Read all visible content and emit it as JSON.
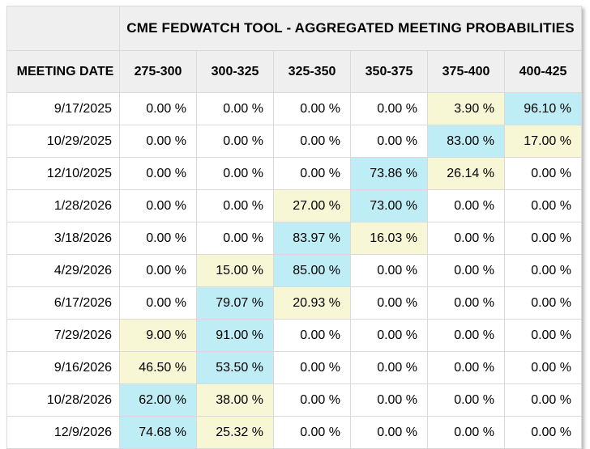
{
  "title": "CME FEDWATCH TOOL - AGGREGATED MEETING PROBABILITIES",
  "table": {
    "date_header": "MEETING DATE",
    "rate_headers": [
      "275-300",
      "300-325",
      "325-350",
      "350-375",
      "375-400",
      "400-425"
    ],
    "rows": [
      {
        "date": "9/17/2025",
        "cells": [
          {
            "value": "0.00 %",
            "highlight": "none"
          },
          {
            "value": "0.00 %",
            "highlight": "none"
          },
          {
            "value": "0.00 %",
            "highlight": "none"
          },
          {
            "value": "0.00 %",
            "highlight": "none"
          },
          {
            "value": "3.90 %",
            "highlight": "yellow"
          },
          {
            "value": "96.10 %",
            "highlight": "blue"
          }
        ]
      },
      {
        "date": "10/29/2025",
        "cells": [
          {
            "value": "0.00 %",
            "highlight": "none"
          },
          {
            "value": "0.00 %",
            "highlight": "none"
          },
          {
            "value": "0.00 %",
            "highlight": "none"
          },
          {
            "value": "0.00 %",
            "highlight": "none"
          },
          {
            "value": "83.00 %",
            "highlight": "blue"
          },
          {
            "value": "17.00 %",
            "highlight": "yellow"
          }
        ]
      },
      {
        "date": "12/10/2025",
        "cells": [
          {
            "value": "0.00 %",
            "highlight": "none"
          },
          {
            "value": "0.00 %",
            "highlight": "none"
          },
          {
            "value": "0.00 %",
            "highlight": "none"
          },
          {
            "value": "73.86 %",
            "highlight": "blue"
          },
          {
            "value": "26.14 %",
            "highlight": "yellow"
          },
          {
            "value": "0.00 %",
            "highlight": "none"
          }
        ]
      },
      {
        "date": "1/28/2026",
        "cells": [
          {
            "value": "0.00 %",
            "highlight": "none"
          },
          {
            "value": "0.00 %",
            "highlight": "none"
          },
          {
            "value": "27.00 %",
            "highlight": "yellow"
          },
          {
            "value": "73.00 %",
            "highlight": "blue"
          },
          {
            "value": "0.00 %",
            "highlight": "none"
          },
          {
            "value": "0.00 %",
            "highlight": "none"
          }
        ]
      },
      {
        "date": "3/18/2026",
        "cells": [
          {
            "value": "0.00 %",
            "highlight": "none"
          },
          {
            "value": "0.00 %",
            "highlight": "none"
          },
          {
            "value": "83.97 %",
            "highlight": "blue"
          },
          {
            "value": "16.03 %",
            "highlight": "yellow"
          },
          {
            "value": "0.00 %",
            "highlight": "none"
          },
          {
            "value": "0.00 %",
            "highlight": "none"
          }
        ]
      },
      {
        "date": "4/29/2026",
        "cells": [
          {
            "value": "0.00 %",
            "highlight": "none"
          },
          {
            "value": "15.00 %",
            "highlight": "yellow"
          },
          {
            "value": "85.00 %",
            "highlight": "blue"
          },
          {
            "value": "0.00 %",
            "highlight": "none"
          },
          {
            "value": "0.00 %",
            "highlight": "none"
          },
          {
            "value": "0.00 %",
            "highlight": "none"
          }
        ]
      },
      {
        "date": "6/17/2026",
        "cells": [
          {
            "value": "0.00 %",
            "highlight": "none"
          },
          {
            "value": "79.07 %",
            "highlight": "blue"
          },
          {
            "value": "20.93 %",
            "highlight": "yellow"
          },
          {
            "value": "0.00 %",
            "highlight": "none"
          },
          {
            "value": "0.00 %",
            "highlight": "none"
          },
          {
            "value": "0.00 %",
            "highlight": "none"
          }
        ]
      },
      {
        "date": "7/29/2026",
        "cells": [
          {
            "value": "9.00 %",
            "highlight": "yellow"
          },
          {
            "value": "91.00 %",
            "highlight": "blue"
          },
          {
            "value": "0.00 %",
            "highlight": "none"
          },
          {
            "value": "0.00 %",
            "highlight": "none"
          },
          {
            "value": "0.00 %",
            "highlight": "none"
          },
          {
            "value": "0.00 %",
            "highlight": "none"
          }
        ]
      },
      {
        "date": "9/16/2026",
        "cells": [
          {
            "value": "46.50 %",
            "highlight": "yellow"
          },
          {
            "value": "53.50 %",
            "highlight": "blue"
          },
          {
            "value": "0.00 %",
            "highlight": "none"
          },
          {
            "value": "0.00 %",
            "highlight": "none"
          },
          {
            "value": "0.00 %",
            "highlight": "none"
          },
          {
            "value": "0.00 %",
            "highlight": "none"
          }
        ]
      },
      {
        "date": "10/28/2026",
        "cells": [
          {
            "value": "62.00 %",
            "highlight": "blue"
          },
          {
            "value": "38.00 %",
            "highlight": "yellow"
          },
          {
            "value": "0.00 %",
            "highlight": "none"
          },
          {
            "value": "0.00 %",
            "highlight": "none"
          },
          {
            "value": "0.00 %",
            "highlight": "none"
          },
          {
            "value": "0.00 %",
            "highlight": "none"
          }
        ]
      },
      {
        "date": "12/9/2026",
        "cells": [
          {
            "value": "74.68 %",
            "highlight": "blue"
          },
          {
            "value": "25.32 %",
            "highlight": "yellow"
          },
          {
            "value": "0.00 %",
            "highlight": "none"
          },
          {
            "value": "0.00 %",
            "highlight": "none"
          },
          {
            "value": "0.00 %",
            "highlight": "none"
          },
          {
            "value": "0.00 %",
            "highlight": "none"
          }
        ]
      }
    ]
  },
  "colors": {
    "highlight_highest": "#beedf6",
    "highlight_second": "#f7f6d5",
    "header_background": "#efefef",
    "grid_border": "#d9d9d9"
  }
}
